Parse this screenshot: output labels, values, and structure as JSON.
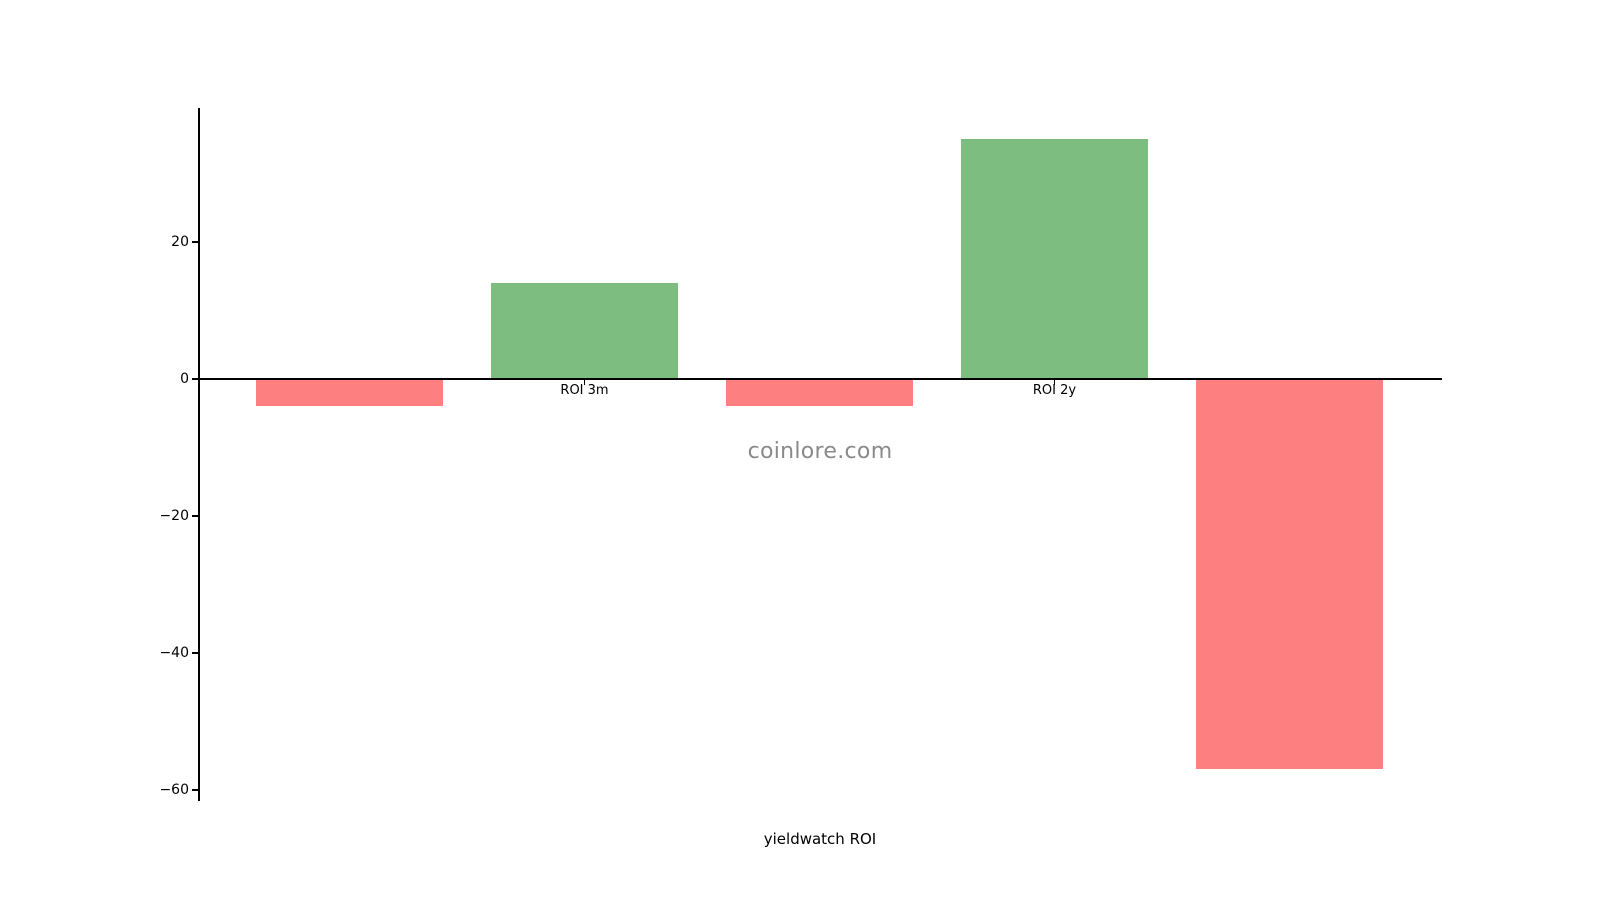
{
  "page": {
    "background_color": "#ffffff",
    "watermark": "coinlore.com",
    "watermark_color": "#8a8a8a"
  },
  "chart_data": {
    "type": "bar",
    "title": "",
    "xlabel": "yieldwatch ROI",
    "ylabel": "",
    "watermark": "coinlore.com",
    "categories": [
      "",
      "ROI 3m",
      "",
      "ROI 2y",
      ""
    ],
    "values": [
      -4,
      14,
      -4,
      35,
      -57
    ],
    "bar_colors": [
      "#fd7f7f",
      "#7dbe80",
      "#fd7f7f",
      "#7dbe80",
      "#fd7f7f"
    ],
    "positive_color": "#7dbe80",
    "negative_color": "#fd7f7f",
    "axis_color": "#000000",
    "ylim": [
      -61.6,
      39.6
    ],
    "yticks": [
      {
        "value": 20,
        "label": "20"
      },
      {
        "value": 0,
        "label": "0"
      },
      {
        "value": -20,
        "label": "−20"
      },
      {
        "value": -40,
        "label": "−40"
      },
      {
        "value": -60,
        "label": "−60"
      }
    ],
    "xticks": [
      {
        "index": 1,
        "label": "ROI 3m"
      },
      {
        "index": 3,
        "label": "ROI 2y"
      }
    ],
    "grid": false,
    "legend": "none"
  }
}
